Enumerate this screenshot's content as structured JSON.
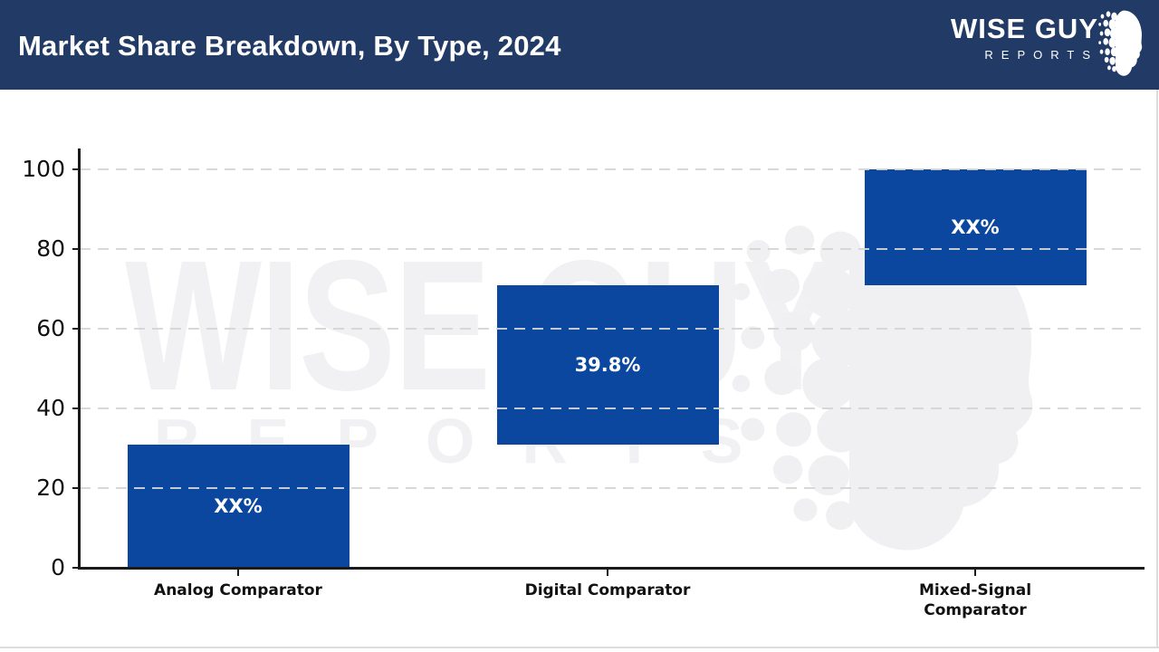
{
  "header": {
    "title": "Market Share Breakdown, By Type, 2024",
    "bg_color": "#213a66",
    "brand_line1": "WISE GUY",
    "brand_line2": "REPORTS"
  },
  "watermark": {
    "line1": "WISE GUY",
    "line2": "REPORTS"
  },
  "chart_data": {
    "type": "bar",
    "subtype": "floating-segment-waterfall",
    "title": "Market Share Breakdown, By Type, 2024",
    "categories": [
      "Analog Comparator",
      "Digital Comparator",
      "Mixed-Signal Comparator"
    ],
    "category_lines": [
      [
        "Analog Comparator"
      ],
      [
        "Digital Comparator"
      ],
      [
        "Mixed-Signal",
        "Comparator"
      ]
    ],
    "series": [
      {
        "name": "Market share (%)",
        "segments": [
          {
            "start": 0,
            "end": 31.0
          },
          {
            "start": 31.0,
            "end": 70.8
          },
          {
            "start": 70.8,
            "end": 100
          }
        ],
        "labels": [
          "XX%",
          "39.8%",
          "XX%"
        ]
      }
    ],
    "ylim": [
      0,
      100
    ],
    "yticks": [
      0,
      20,
      40,
      60,
      80,
      100
    ],
    "xlabel": "",
    "ylabel": "",
    "grid": "horizontal-dashed",
    "legend": "none",
    "bar_color": "#0b479f",
    "bar_label_color": "#ffffff",
    "axis_color": "#1a1a1a",
    "gridline_color": "#d5d5d6"
  }
}
